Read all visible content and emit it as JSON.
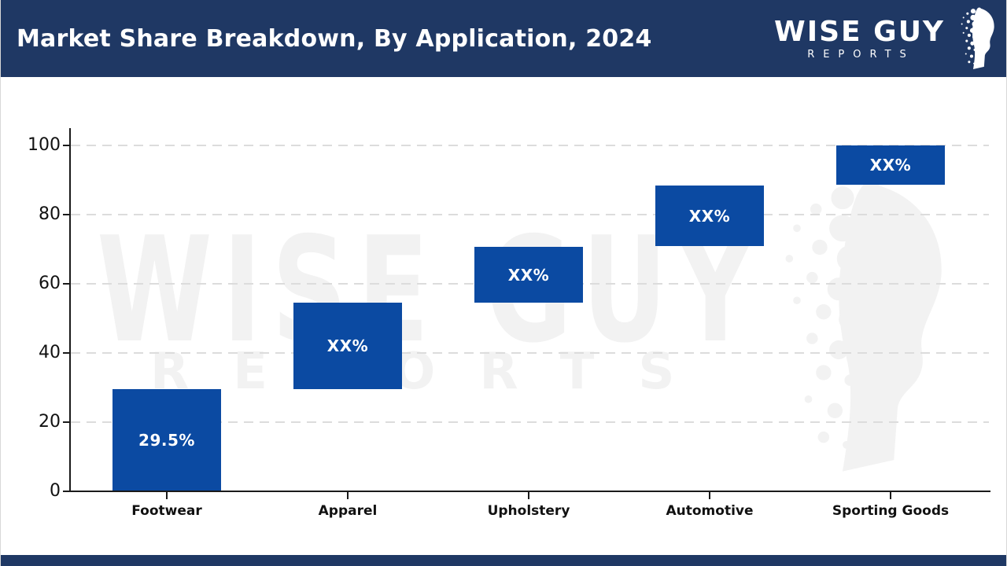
{
  "header": {
    "title": "Market Share Breakdown, By Application, 2024",
    "logo": {
      "name": "WISE GUY",
      "tagline": "REPORTS"
    }
  },
  "watermark": {
    "line1": "WISE GUY",
    "line2": "REPORTS"
  },
  "colors": {
    "header_bg": "#1F3864",
    "footer_bg": "#1F3864",
    "bar": "#0B4AA2",
    "grid": "#DCDCDC",
    "axis": "#1A1A1A",
    "bar_label": "#FFFFFF",
    "title_text": "#FFFFFF",
    "watermark": "#F2F2F2"
  },
  "chart_data": {
    "type": "bar",
    "subtype": "waterfall",
    "title": "Market Share Breakdown, By Application, 2024",
    "categories": [
      "Footwear",
      "Apparel",
      "Upholstery",
      "Automotive",
      "Sporting Goods"
    ],
    "segments": [
      {
        "category": "Footwear",
        "start": 0,
        "end": 29.5,
        "label": "29.5%"
      },
      {
        "category": "Apparel",
        "start": 29.5,
        "end": 54.5,
        "label": "XX%"
      },
      {
        "category": "Upholstery",
        "start": 54.5,
        "end": 70.6,
        "label": "XX%"
      },
      {
        "category": "Automotive",
        "start": 70.8,
        "end": 88.3,
        "label": "XX%"
      },
      {
        "category": "Sporting Goods",
        "start": 88.6,
        "end": 100,
        "label": "XX%"
      }
    ],
    "xlabel": "",
    "ylabel": "",
    "yticks": [
      0,
      20,
      40,
      60,
      80,
      100
    ],
    "ylim": [
      0,
      105
    ],
    "grid": "horizontal-dashed",
    "legend": "none"
  }
}
